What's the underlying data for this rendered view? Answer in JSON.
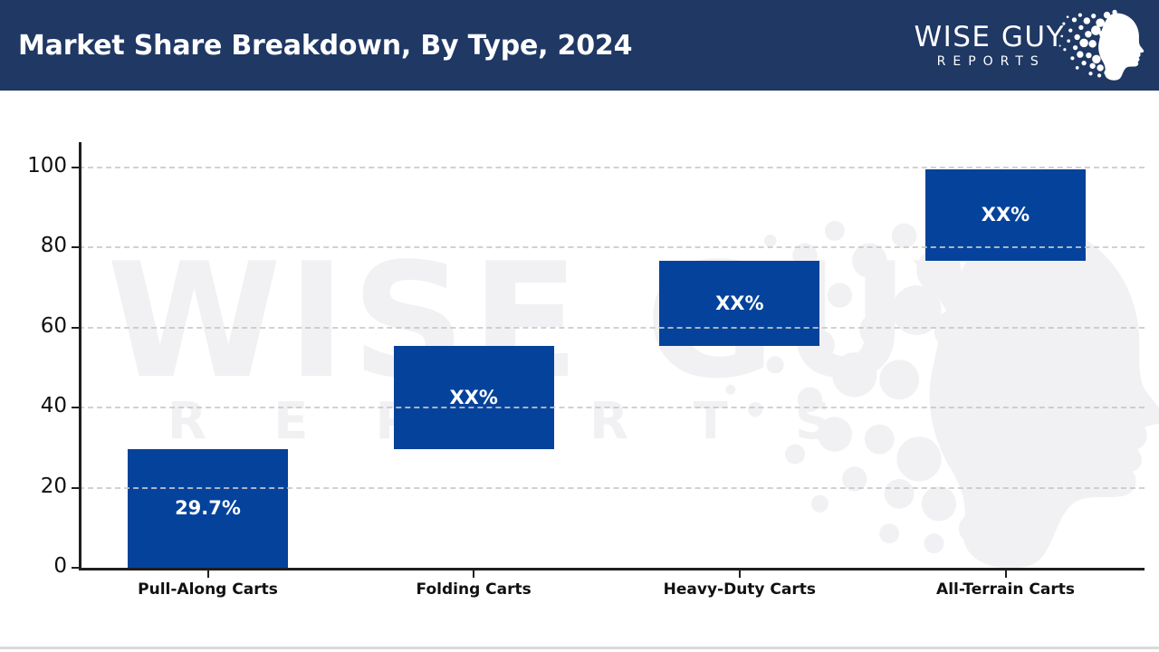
{
  "header": {
    "title": "Market Share Breakdown, By Type, 2024",
    "logo": {
      "line1": "WISE GUY",
      "line2": "REPORTS"
    }
  },
  "watermark": {
    "line1": "WISE GUY",
    "line2": "REPORTS"
  },
  "colors": {
    "header_bg": "#1f3864",
    "header_text": "#ffffff",
    "bar_fill": "#05429b",
    "bar_label_text": "#ffffff",
    "axis": "#1f1f1f",
    "gridline": "#c9c9c9",
    "tick_label": "#111111",
    "category_label": "#111111",
    "watermark": "#f1f1f3",
    "bottom_line": "#d9d9d9"
  },
  "chart_data": {
    "type": "bar",
    "subtype": "waterfall",
    "title": "Market Share Breakdown, By Type, 2024",
    "categories": [
      "Pull-Along Carts",
      "Folding Carts",
      "Heavy-Duty Carts",
      "All-Terrain Carts"
    ],
    "series": [
      {
        "name": "market-share-percent",
        "segments": [
          {
            "from": 0,
            "to": 29.7,
            "label": "29.7%"
          },
          {
            "from": 29.7,
            "to": 55.4,
            "label": "XX%"
          },
          {
            "from": 55.4,
            "to": 76.6,
            "label": "XX%"
          },
          {
            "from": 76.6,
            "to": 99.5,
            "label": "XX%"
          }
        ]
      }
    ],
    "xlabel": "",
    "ylabel": "",
    "yticks": [
      0,
      20,
      40,
      60,
      80,
      100
    ],
    "ylim": [
      0,
      106
    ],
    "grid": "horizontal-dashed",
    "legend": "none",
    "bar_width_frac": 0.6
  }
}
